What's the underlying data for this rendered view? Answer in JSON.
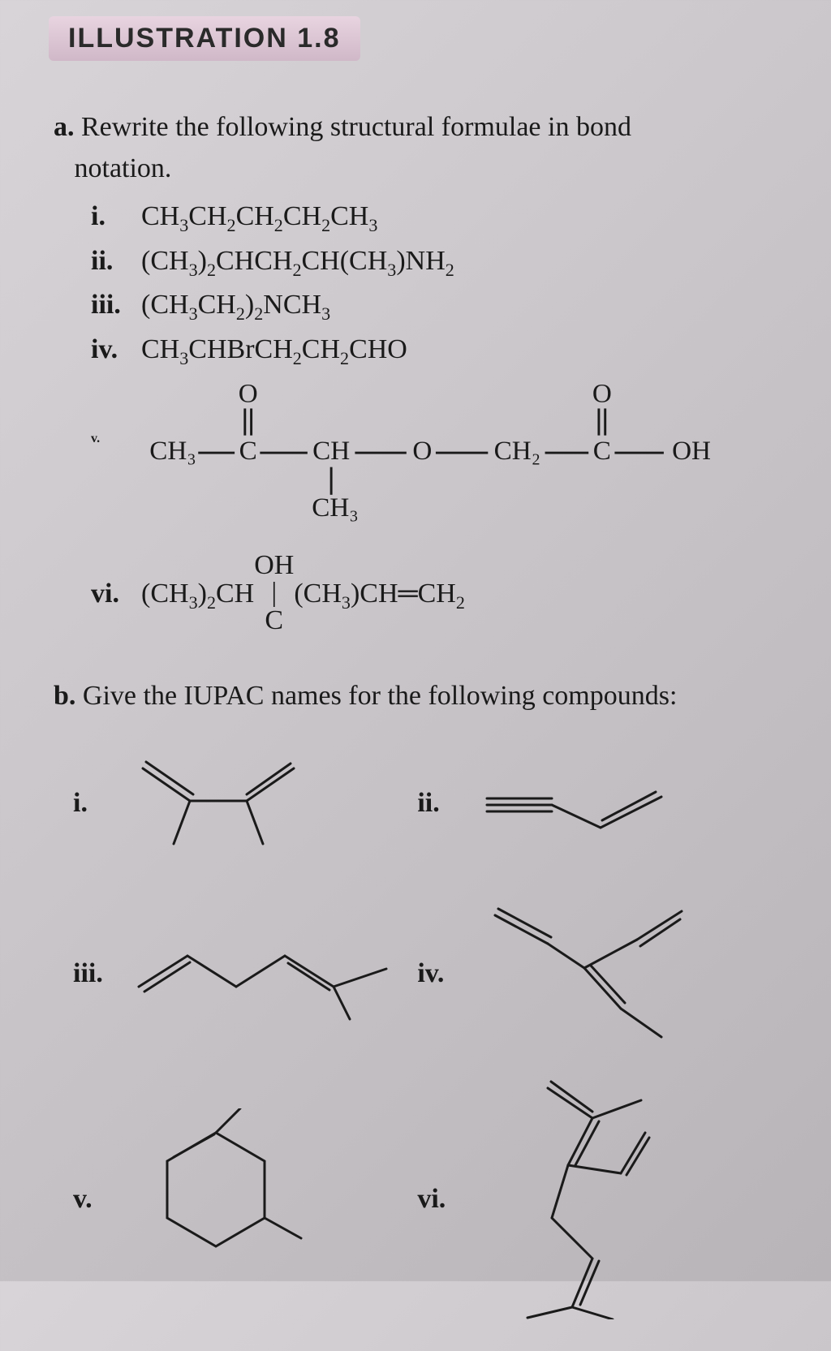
{
  "badge": "ILLUSTRATION 1.8",
  "qa": {
    "label": "a.",
    "text_line1": "Rewrite the following structural formulae in bond",
    "text_line2": "notation.",
    "items": {
      "i": {
        "marker": "i.",
        "formula_html": "CH<sub>3</sub>CH<sub>2</sub>CH<sub>2</sub>CH<sub>2</sub>CH<sub>3</sub>"
      },
      "ii": {
        "marker": "ii.",
        "formula_html": "(CH<sub>3</sub>)<sub>2</sub>CHCH<sub>2</sub>CH(CH<sub>3</sub>)NH<sub>2</sub>"
      },
      "iii": {
        "marker": "iii.",
        "formula_html": "(CH<sub>3</sub>CH<sub>2</sub>)<sub>2</sub>NCH<sub>3</sub>"
      },
      "iv": {
        "marker": "iv.",
        "formula_html": "CH<sub>3</sub>CHBrCH<sub>2</sub>CH<sub>2</sub>CHO"
      },
      "v": {
        "marker": "v."
      },
      "vi": {
        "marker": "vi.",
        "formula_html": "(CH<sub>3</sub>)<sub>2</sub>CH<span class=\"oh-stack\">OH<br>|<br>C</span>(CH<sub>3</sub>)CH&#9552;CH<sub>2</sub>"
      }
    },
    "v_structure": {
      "ch3_l": "CH₃",
      "c1": "C",
      "ch_mid": "CH",
      "o_ether": "O",
      "ch2": "CH₂",
      "c2": "C",
      "oh": "OH",
      "o_dbl1": "O",
      "o_dbl2": "O",
      "ch3_below": "CH₃",
      "bond_color": "#1a1a1a",
      "font_size": 34
    }
  },
  "qb": {
    "label": "b.",
    "text": "Give the IUPAC names for the following compounds:",
    "items": {
      "i": {
        "marker": "i."
      },
      "ii": {
        "marker": "ii."
      },
      "iii": {
        "marker": "iii."
      },
      "iv": {
        "marker": "iv."
      },
      "v": {
        "marker": "v."
      },
      "vi": {
        "marker": "vi."
      }
    }
  },
  "style": {
    "stroke": "#1a1a1a",
    "stroke_width": 3,
    "double_gap": 5
  }
}
